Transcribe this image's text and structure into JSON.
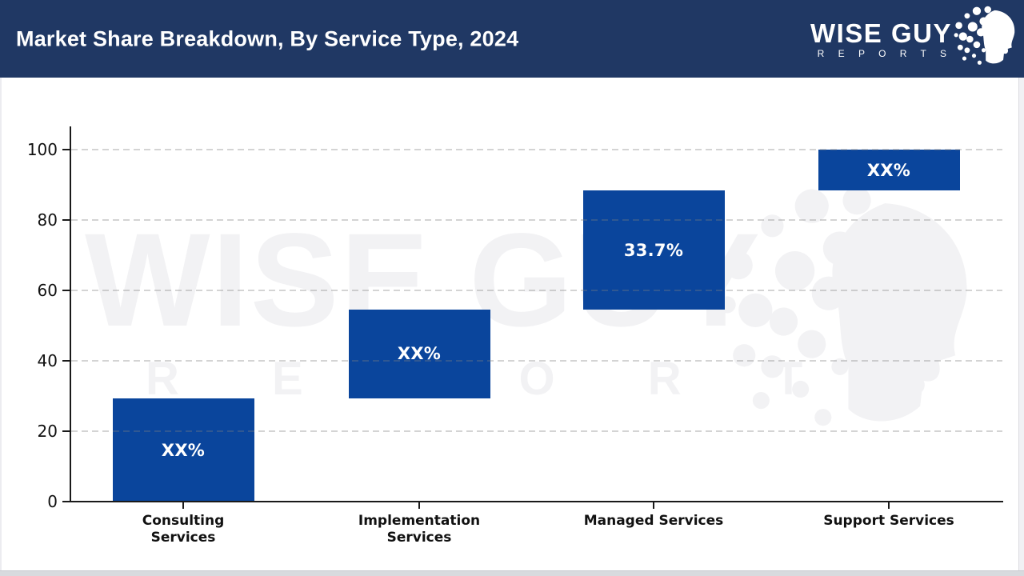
{
  "header": {
    "title": "Market Share Breakdown, By Service Type, 2024",
    "logo": {
      "line1": "WISE GUY",
      "line2": "R E P O R T S"
    }
  },
  "watermark": {
    "line1": "WISE GUY",
    "line2": "R E P O R T S"
  },
  "colors": {
    "header_bg": "#203864",
    "bar_blue": "#0a459c",
    "axis_text": "#111111",
    "watermark_gray": "#f2f2f4"
  },
  "chart_data": {
    "type": "bar",
    "subtype": "waterfall",
    "title": "Market Share Breakdown, By Service Type, 2024",
    "unit": "percent market share",
    "categories": [
      "Consulting Services",
      "Implementation Services",
      "Managed Services",
      "Support Services"
    ],
    "category_label_lines": [
      [
        "Consulting",
        "Services"
      ],
      [
        "Implementation",
        "Services"
      ],
      [
        "Managed Services"
      ],
      [
        "Support Services"
      ]
    ],
    "segments": [
      {
        "category": "Consulting Services",
        "start": 0,
        "end": 29.3,
        "value": 29.3,
        "value_label": "XX%"
      },
      {
        "category": "Implementation Services",
        "start": 29.3,
        "end": 54.6,
        "value": 25.3,
        "value_label": "XX%"
      },
      {
        "category": "Managed Services",
        "start": 54.6,
        "end": 88.3,
        "value": 33.7,
        "value_label": "33.7%"
      },
      {
        "category": "Support Services",
        "start": 88.3,
        "end": 100,
        "value": 11.7,
        "value_label": "XX%"
      }
    ],
    "yticks": [
      0,
      20,
      40,
      60,
      80,
      100
    ],
    "ylim": [
      0,
      107
    ],
    "xlabel": "",
    "ylabel": "",
    "grid": "horizontal-dashed",
    "legend": "none"
  }
}
